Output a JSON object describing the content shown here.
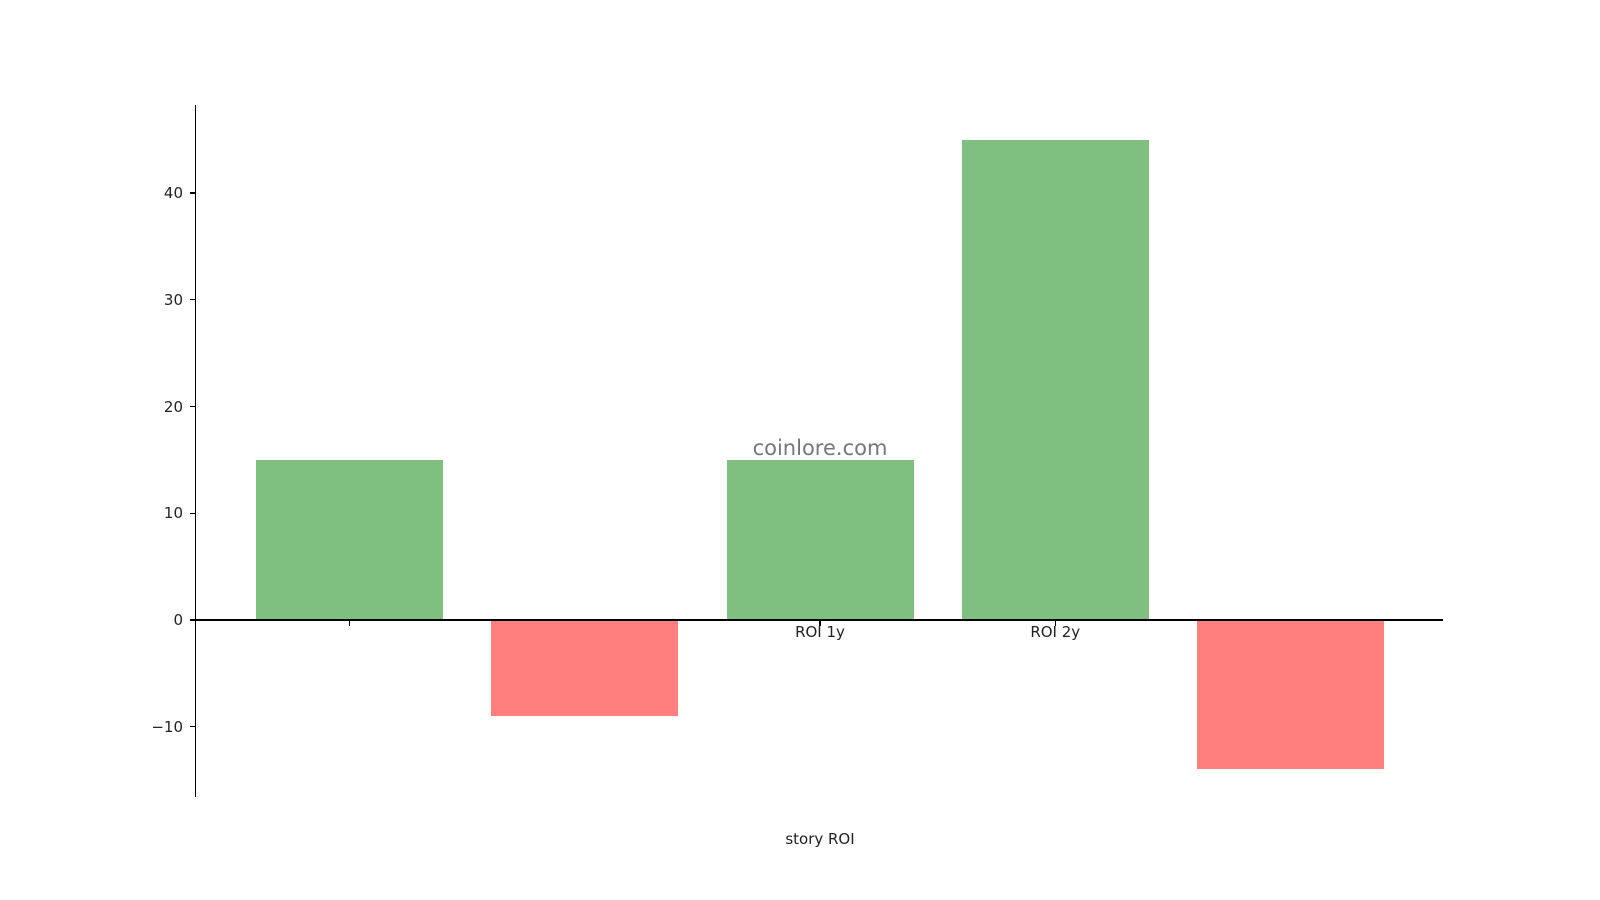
{
  "page": {
    "background_color": "#ffffff"
  },
  "watermark": {
    "text": "coinlore.com",
    "color": "#777777"
  },
  "chart_data": {
    "type": "bar",
    "title": "",
    "xlabel": "story ROI",
    "ylabel": "",
    "categories": [
      "",
      "",
      "ROI 1y",
      "ROI 2y",
      ""
    ],
    "values": [
      15,
      -9,
      15,
      45,
      -14
    ],
    "bar_colors": [
      "#7fbf7f",
      "#ff7f7f",
      "#7fbf7f",
      "#7fbf7f",
      "#ff7f7f"
    ],
    "positive_color": "#7fbf7f",
    "negative_color": "#ff7f7f",
    "yticks": [
      40,
      30,
      20,
      10,
      0,
      -10
    ],
    "ytick_labels": [
      "40",
      "30",
      "20",
      "10",
      "0",
      "−10"
    ],
    "ylim": [
      -16.6,
      48.3
    ],
    "xtick_marks_at_indices": [
      0,
      2,
      3
    ],
    "grid": false,
    "legend": false,
    "axis_color": "#000000",
    "text_color": "#222222"
  }
}
